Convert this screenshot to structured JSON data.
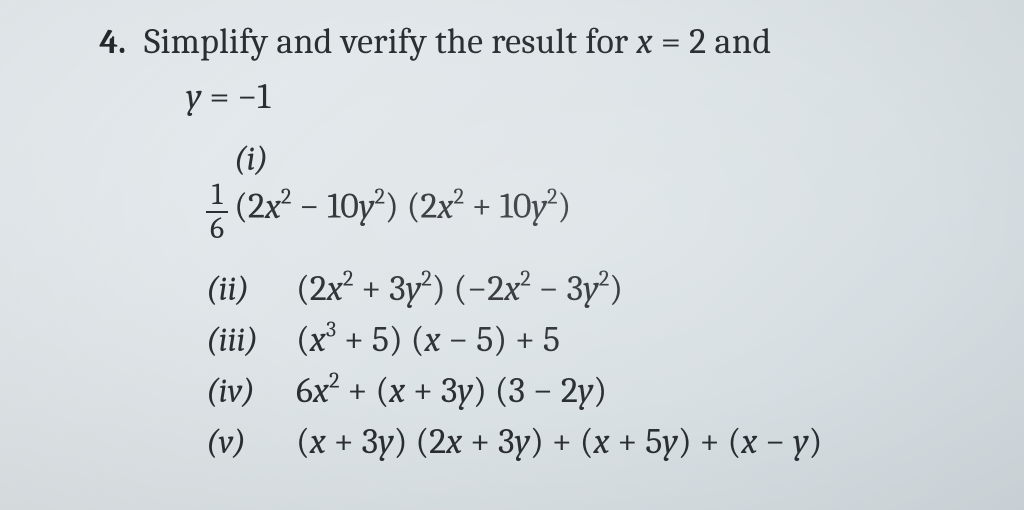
{
  "question": {
    "number": "4.",
    "prompt_line1_prefix": "Simplify and verify the result for ",
    "prompt_var1": "x",
    "prompt_eq1": " = 2 ",
    "prompt_and": "and",
    "prompt_line2_var": "y",
    "prompt_line2_eq": " = −1"
  },
  "items": [
    {
      "label": "(i)",
      "has_fraction": true,
      "frac_num": "1",
      "frac_den": "6",
      "after_frac_parts": [
        {
          "t": "txt",
          "v": "(2"
        },
        {
          "t": "mi",
          "v": "x"
        },
        {
          "t": "sup",
          "v": "2"
        },
        {
          "t": "txt",
          "v": " − 10"
        },
        {
          "t": "mi",
          "v": "y"
        },
        {
          "t": "sup",
          "v": "2"
        },
        {
          "t": "txt",
          "v": ") (2"
        },
        {
          "t": "mi",
          "v": "x"
        },
        {
          "t": "sup",
          "v": "2"
        },
        {
          "t": "txt",
          "v": " + 10"
        },
        {
          "t": "mi",
          "v": "y"
        },
        {
          "t": "sup",
          "v": "2"
        },
        {
          "t": "txt",
          "v": ")"
        }
      ]
    },
    {
      "label": "(ii)",
      "has_fraction": false,
      "after_frac_parts": [
        {
          "t": "txt",
          "v": "(2"
        },
        {
          "t": "mi",
          "v": "x"
        },
        {
          "t": "sup",
          "v": "2"
        },
        {
          "t": "txt",
          "v": " + 3"
        },
        {
          "t": "mi",
          "v": "y"
        },
        {
          "t": "sup",
          "v": "2"
        },
        {
          "t": "txt",
          "v": ") (−2"
        },
        {
          "t": "mi",
          "v": "x"
        },
        {
          "t": "sup",
          "v": "2"
        },
        {
          "t": "txt",
          "v": " − 3"
        },
        {
          "t": "mi",
          "v": "y"
        },
        {
          "t": "sup",
          "v": "2"
        },
        {
          "t": "txt",
          "v": ")"
        }
      ]
    },
    {
      "label": "(iii)",
      "has_fraction": false,
      "after_frac_parts": [
        {
          "t": "txt",
          "v": "("
        },
        {
          "t": "mi",
          "v": "x"
        },
        {
          "t": "sup",
          "v": "3"
        },
        {
          "t": "txt",
          "v": " + 5) ("
        },
        {
          "t": "mi",
          "v": "x"
        },
        {
          "t": "txt",
          "v": " − 5) + 5"
        }
      ]
    },
    {
      "label": "(iv)",
      "has_fraction": false,
      "after_frac_parts": [
        {
          "t": "txt",
          "v": "6"
        },
        {
          "t": "mi",
          "v": "x"
        },
        {
          "t": "sup",
          "v": "2"
        },
        {
          "t": "txt",
          "v": " + ("
        },
        {
          "t": "mi",
          "v": "x"
        },
        {
          "t": "txt",
          "v": " + 3"
        },
        {
          "t": "mi",
          "v": "y"
        },
        {
          "t": "txt",
          "v": ") (3 − 2"
        },
        {
          "t": "mi",
          "v": "y"
        },
        {
          "t": "txt",
          "v": ")"
        }
      ]
    },
    {
      "label": "(v)",
      "has_fraction": false,
      "after_frac_parts": [
        {
          "t": "txt",
          "v": "("
        },
        {
          "t": "mi",
          "v": "x"
        },
        {
          "t": "txt",
          "v": " + 3"
        },
        {
          "t": "mi",
          "v": "y"
        },
        {
          "t": "txt",
          "v": ") (2"
        },
        {
          "t": "mi",
          "v": "x"
        },
        {
          "t": "txt",
          "v": " + 3"
        },
        {
          "t": "mi",
          "v": "y"
        },
        {
          "t": "txt",
          "v": ") + ("
        },
        {
          "t": "mi",
          "v": "x"
        },
        {
          "t": "txt",
          "v": " + 5"
        },
        {
          "t": "mi",
          "v": "y"
        },
        {
          "t": "txt",
          "v": ") + ("
        },
        {
          "t": "mi",
          "v": "x"
        },
        {
          "t": "txt",
          "v": " − "
        },
        {
          "t": "mi",
          "v": "y"
        },
        {
          "t": "txt",
          "v": ")"
        }
      ]
    }
  ],
  "style": {
    "text_color": "#2b2f33",
    "bg_gradient_from": "#e8eef1",
    "bg_gradient_to": "#d2dadf",
    "body_fontsize": 36,
    "label_fontsize": 34,
    "frac_fontsize": 30,
    "sup_scale": 0.62
  }
}
